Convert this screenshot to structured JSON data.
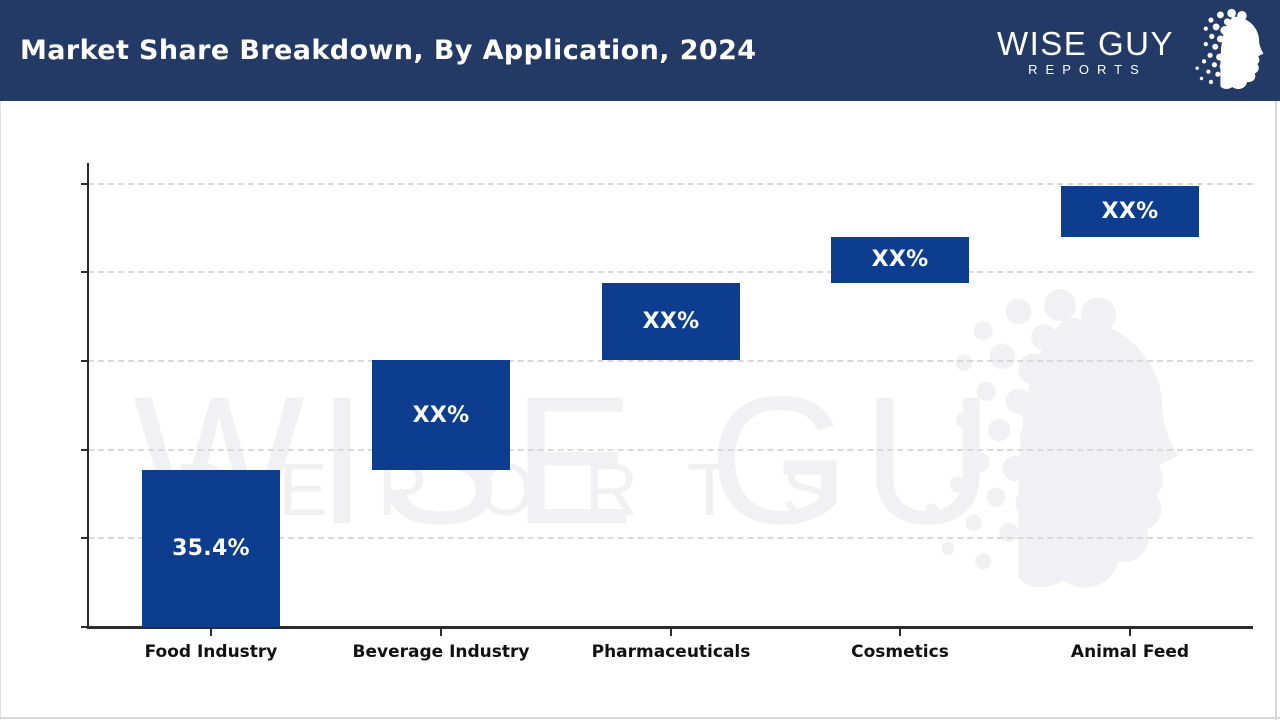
{
  "header": {
    "title": "Market Share Breakdown, By Application, 2024",
    "logo": {
      "name": "WISE GUY",
      "subtitle": "REPORTS"
    }
  },
  "watermark": {
    "line1": "WISE GUY",
    "line2": "REPORTS"
  },
  "colors": {
    "header_bg": "#233A66",
    "bar": "#0C3D8F",
    "axis": "#2B2B2B",
    "grid": "#D9D9D9",
    "tick_label": "#1A1A1A",
    "label_on_bar": "#FFFFFF",
    "watermark": "#F1F1F3",
    "page_border": "#D8D8D8"
  },
  "chart_data": {
    "type": "bar",
    "subtype": "waterfall-floating-bars",
    "title": "Market Share Breakdown, By Application, 2024",
    "xlabel": "",
    "ylabel": "",
    "categories": [
      "Food Industry",
      "Beverage Industry",
      "Pharmaceuticals",
      "Cosmetics",
      "Animal Feed"
    ],
    "segments": [
      {
        "category": "Food Industry",
        "start": 0,
        "end": 35.4,
        "label": "35.4%"
      },
      {
        "category": "Beverage Industry",
        "start": 35.4,
        "end": 60.1,
        "label": "XX%"
      },
      {
        "category": "Pharmaceuticals",
        "start": 60.1,
        "end": 77.6,
        "label": "XX%"
      },
      {
        "category": "Cosmetics",
        "start": 77.6,
        "end": 87.9,
        "label": "XX%"
      },
      {
        "category": "Animal Feed",
        "start": 87.9,
        "end": 99.4,
        "label": "XX%"
      }
    ],
    "yticks": [
      0,
      20,
      40,
      60,
      80,
      100
    ],
    "ylim": [
      0,
      104.6
    ],
    "grid": "horizontal-dashed",
    "legend": "none",
    "bar_color": "#0C3D8F",
    "value_labels_inside_bars": true
  }
}
